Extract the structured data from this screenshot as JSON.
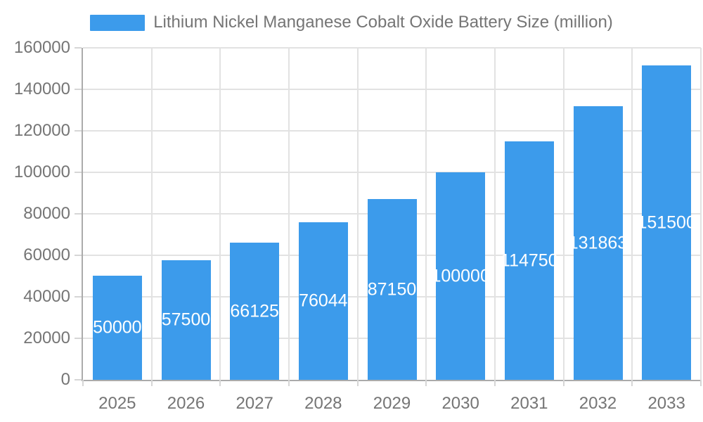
{
  "chart_data": {
    "type": "bar",
    "title": "Lithium Nickel Manganese Cobalt Oxide Battery Size (million)",
    "categories": [
      "2025",
      "2026",
      "2027",
      "2028",
      "2029",
      "2030",
      "2031",
      "2032",
      "2033"
    ],
    "values": [
      50000,
      57500,
      66125,
      76044,
      87150,
      100000,
      114750,
      131863,
      151500
    ],
    "bar_labels": [
      "50000",
      "57500",
      "66125",
      "76044",
      "87150",
      "100000",
      "114750",
      "131863",
      "151500"
    ],
    "ytick_labels": [
      "0",
      "20000",
      "40000",
      "60000",
      "80000",
      "100000",
      "120000",
      "140000",
      "160000"
    ],
    "ylim": [
      0,
      160000
    ],
    "ytick_step": 20000,
    "xlabel": "",
    "ylabel": "",
    "grid": "on",
    "legend_position": "top",
    "colors": {
      "bar": "#3C9BEB",
      "grid_line": "#E2E2E2",
      "axis_line": "#ABABAB",
      "tick": "#D6D6D6",
      "axis_text": "#757575",
      "bar_label_text": "#FFFFFF",
      "background": "#FFFFFF"
    }
  }
}
